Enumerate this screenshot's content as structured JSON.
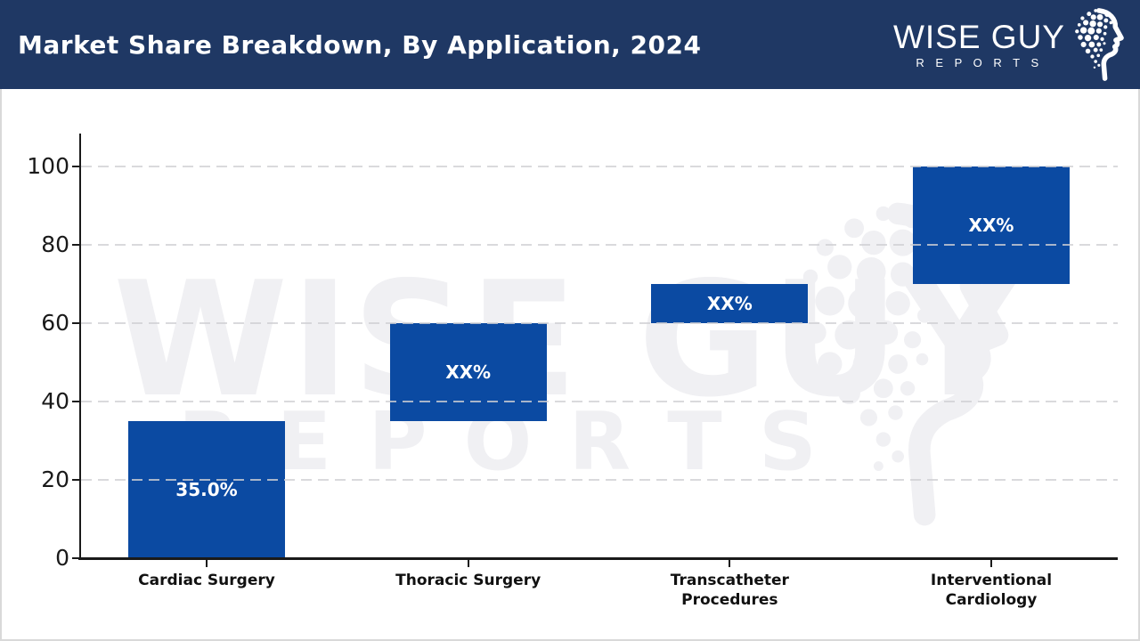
{
  "header": {
    "title": "Market Share Breakdown, By Application, 2024",
    "brand_line1": "WISE GUY",
    "brand_line2": "R E P O R T S"
  },
  "watermark": {
    "line1": "WISE GUY",
    "line2": "R E P O R T S"
  },
  "chart_data": {
    "type": "bar",
    "subtype": "floating-segment waterfall of market share",
    "title": "Market Share Breakdown, By Application, 2024",
    "categories": [
      "Cardiac Surgery",
      "Thoracic Surgery",
      "Transcatheter\nProcedures",
      "Interventional\nCardiology"
    ],
    "segments": [
      {
        "category": "Cardiac Surgery",
        "start": 0,
        "end": 35,
        "value_label": "35.0%"
      },
      {
        "category": "Thoracic Surgery",
        "start": 35,
        "end": 60,
        "value_label": "XX%"
      },
      {
        "category": "Transcatheter Procedures",
        "start": 60,
        "end": 70,
        "value_label": "XX%"
      },
      {
        "category": "Interventional Cardiology",
        "start": 70,
        "end": 100,
        "value_label": "XX%"
      }
    ],
    "ylim": [
      0,
      100
    ],
    "yticks": [
      0,
      20,
      40,
      60,
      80,
      100
    ],
    "grid": {
      "horizontal": true,
      "style": "dashed",
      "drawn_over_bars": true
    },
    "legend": "none",
    "bar_color": "#0b4aa2",
    "bar_label_color": "#ffffff",
    "axis_color": "#1a1a1a",
    "header_bg_color": "#1f3864",
    "watermark_color": "#f0f0f3"
  }
}
